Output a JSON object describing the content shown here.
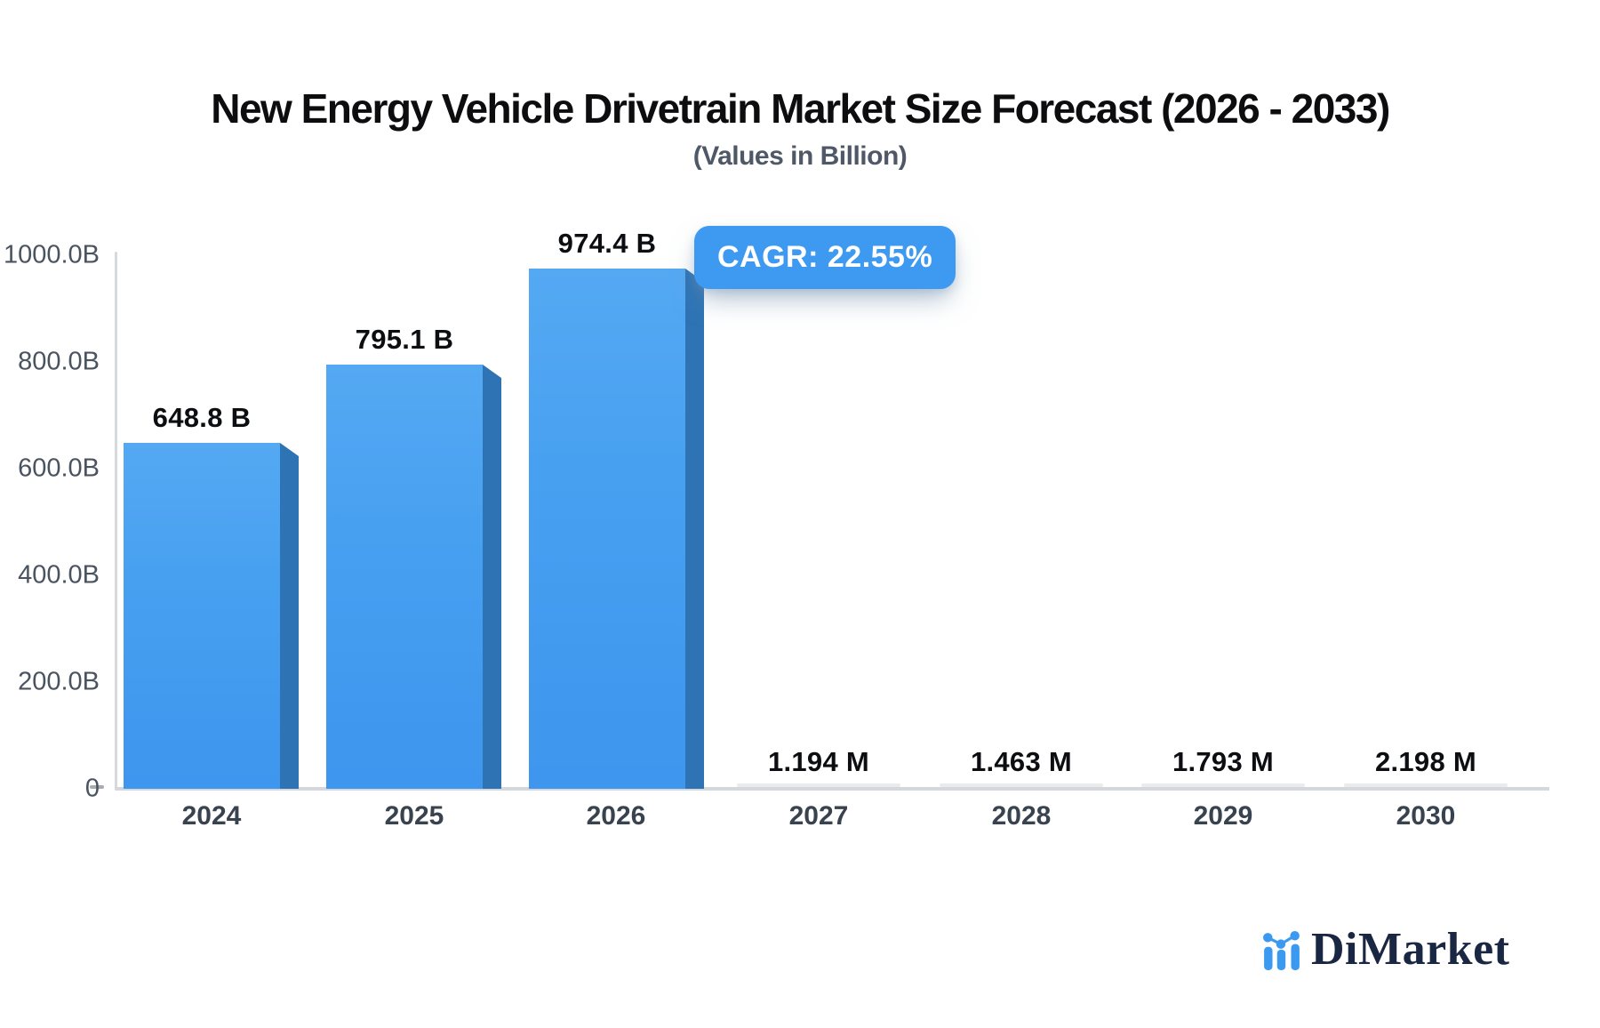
{
  "header": {
    "title": "New Energy Vehicle Drivetrain Market Size Forecast (2026 - 2033)",
    "subtitle": "(Values in Billion)"
  },
  "badge": {
    "text": "CAGR: 22.55%",
    "bg_color": "#3d9af0",
    "text_color": "#ffffff"
  },
  "brand": {
    "name": "DiMarket",
    "icon": "bar-line-chart-icon",
    "text_color": "#1a2742",
    "icon_color": "#3b9af0"
  },
  "chart_data": {
    "type": "bar",
    "title": "New Energy Vehicle Drivetrain Market Size Forecast (2026 - 2033)",
    "subtitle": "(Values in Billion)",
    "categories": [
      "2024",
      "2025",
      "2026",
      "2027",
      "2028",
      "2029",
      "2030"
    ],
    "values_billion": [
      648.8,
      795.1,
      974.4,
      0.001194,
      0.001463,
      0.001793,
      0.002198
    ],
    "bar_value_labels": [
      "648.8 B",
      "795.1 B",
      "974.4 B",
      "1.194 M",
      "1.463 M",
      "1.793 M",
      "2.198 M"
    ],
    "y_tick_labels": [
      "1000.0B",
      "800.0B",
      "600.0B",
      "400.0B",
      "200.0B",
      "0"
    ],
    "ylim": [
      0,
      1000
    ],
    "xlabel": "",
    "ylabel": "",
    "grid": false,
    "legend": false,
    "annotation": "CAGR: 22.55%",
    "bar_color": "#479ff0",
    "bar_side_color": "#2e74b5",
    "tiny_bar_color": "#e9ebed"
  }
}
